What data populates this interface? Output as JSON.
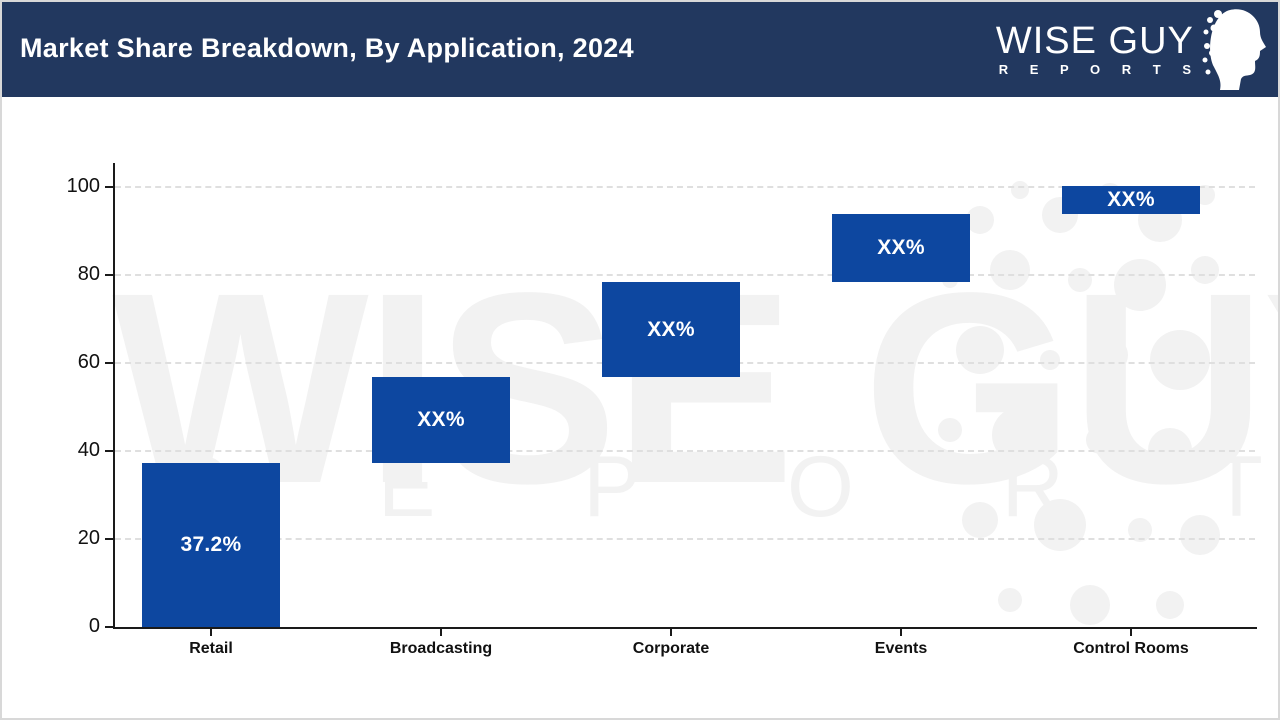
{
  "header": {
    "title": "Market Share Breakdown, By Application, 2024",
    "logo": {
      "line1": "WISE GUY",
      "line2": "REPORTS"
    }
  },
  "watermark": {
    "line1": "WISE GUY",
    "line2": "REPORTS"
  },
  "colors": {
    "header_bg": "#22385f",
    "bar": "#0d47a0",
    "grid": "#dfdfdf",
    "axis": "#1a1a1a",
    "bar_label": "#ffffff",
    "watermark": "#f2f2f2",
    "frame_border": "#d8d8d8"
  },
  "chart_data": {
    "type": "bar",
    "subtype": "waterfall",
    "title": "Market Share Breakdown, By Application, 2024",
    "categories": [
      "Retail",
      "Broadcasting",
      "Corporate",
      "Events",
      "Control Rooms"
    ],
    "segments": [
      {
        "category": "Retail",
        "start": 0,
        "end": 37.2,
        "label": "37.2%"
      },
      {
        "category": "Broadcasting",
        "start": 37.2,
        "end": 56.8,
        "label": "XX%"
      },
      {
        "category": "Corporate",
        "start": 56.8,
        "end": 78.4,
        "label": "XX%"
      },
      {
        "category": "Events",
        "start": 78.4,
        "end": 93.8,
        "label": "XX%"
      },
      {
        "category": "Control Rooms",
        "start": 93.8,
        "end": 100.2,
        "label": "XX%"
      }
    ],
    "ylabel": "",
    "xlabel": "",
    "ylim": [
      0,
      105.5
    ],
    "yticks": [
      0,
      20,
      40,
      60,
      80,
      100
    ],
    "grid": "horizontal-dashed",
    "legend": null
  }
}
